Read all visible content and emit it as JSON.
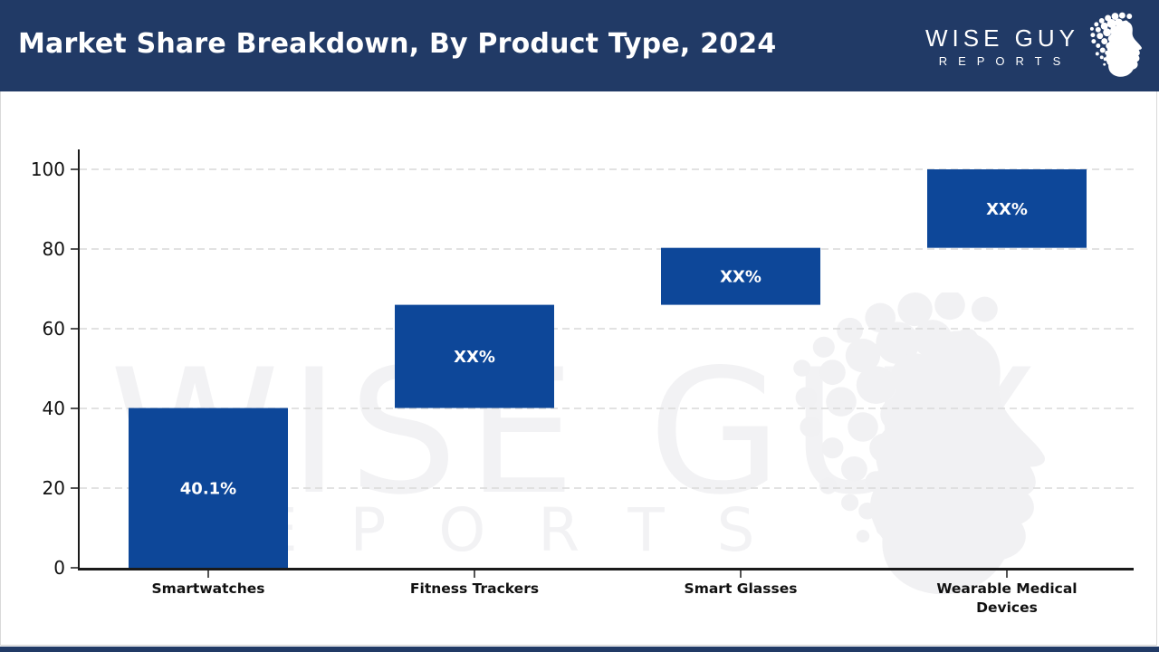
{
  "header": {
    "title": "Market Share Breakdown, By Product Type, 2024",
    "logo": {
      "wordmark": "WISE GUY",
      "subtitle": "REPORTS"
    }
  },
  "watermark": {
    "line1": "WISE GUY",
    "line2": "REPORTS"
  },
  "colors": {
    "header_navy": "#213a66",
    "bar_blue": "#0d4799",
    "grid_gray": "#d9d9d9",
    "axis_black": "#1a1a1a",
    "tick_text": "#111111",
    "bar_label_white": "#ffffff",
    "watermark_gray": "#f2f2f4"
  },
  "chart_data": {
    "type": "bar",
    "variant": "waterfall-segmented-stack",
    "title": "Market Share Breakdown, By Product Type, 2024",
    "categories": [
      "Smartwatches",
      "Fitness Trackers",
      "Smart Glasses",
      "Wearable Medical\nDevices"
    ],
    "segments": [
      {
        "category": "Smartwatches",
        "start": 0,
        "end": 40.1,
        "label": "40.1%"
      },
      {
        "category": "Fitness Trackers",
        "start": 40.1,
        "end": 66.0,
        "label": "XX%"
      },
      {
        "category": "Smart Glasses",
        "start": 66.0,
        "end": 80.3,
        "label": "XX%"
      },
      {
        "category": "Wearable Medical Devices",
        "start": 80.3,
        "end": 100,
        "label": "XX%"
      }
    ],
    "ylim": [
      0,
      100
    ],
    "yticks": [
      0,
      20,
      40,
      60,
      80,
      100
    ],
    "xlabel": "",
    "ylabel": "",
    "grid": "horizontal-dashed",
    "legend": "none"
  }
}
